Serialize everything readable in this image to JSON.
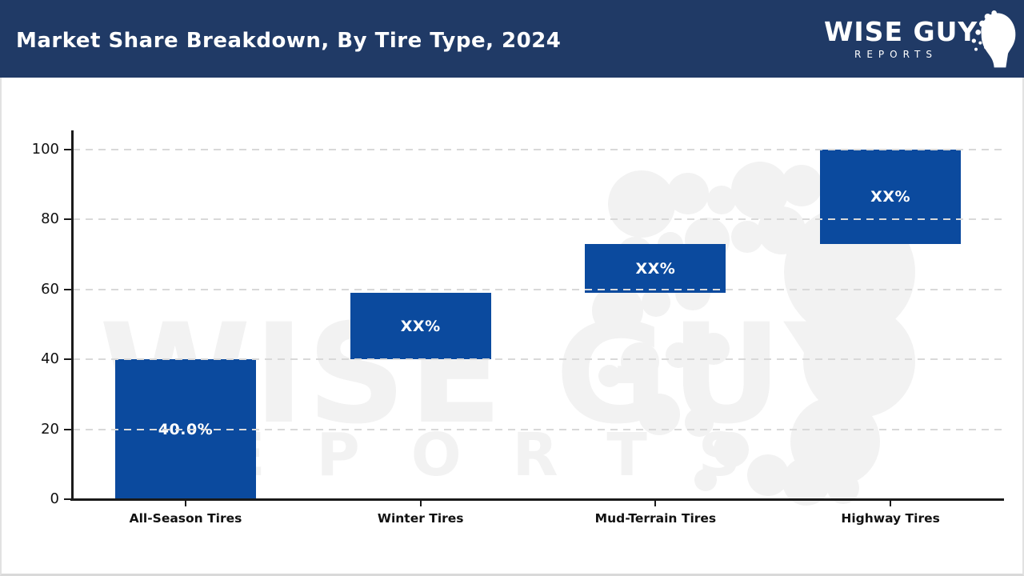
{
  "header": {
    "title": "Market Share Breakdown, By Tire Type, 2024",
    "logo": {
      "line1": "WISE GUY",
      "line2": "REPORTS"
    }
  },
  "watermark": {
    "line1": "WISE GUY",
    "line2": "REPORTS"
  },
  "chart_data": {
    "type": "bar",
    "subtype": "waterfall",
    "title": "Market Share Breakdown, By Tire Type, 2024",
    "categories": [
      "All-Season Tires",
      "Winter Tires",
      "Mud-Terrain Tires",
      "Highway Tires"
    ],
    "segments": [
      {
        "category": "All-Season Tires",
        "start": 0,
        "end": 40,
        "label": "40.0%"
      },
      {
        "category": "Winter Tires",
        "start": 40,
        "end": 59,
        "label": "XX%"
      },
      {
        "category": "Mud-Terrain Tires",
        "start": 59,
        "end": 73,
        "label": "XX%"
      },
      {
        "category": "Highway Tires",
        "start": 73,
        "end": 100,
        "label": "XX%"
      }
    ],
    "yticks": [
      0,
      20,
      40,
      60,
      80,
      100
    ],
    "ylim": [
      0,
      106
    ],
    "xlabel": "",
    "ylabel": "",
    "grid": "dashed-horizontal",
    "legend": "none",
    "bar_color": "#0b4a9e",
    "bar_label_color": "#ffffff",
    "header_color": "#203a66",
    "watermark_color": "#f2f2f2"
  }
}
